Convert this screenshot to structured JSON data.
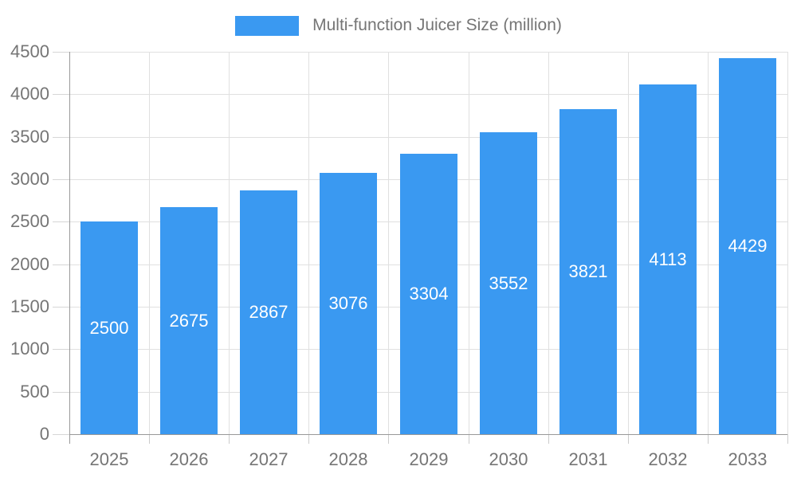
{
  "legend": {
    "label": "Multi-function Juicer Size (million)"
  },
  "chart_data": {
    "type": "bar",
    "title": "Multi-function Juicer Size (million)",
    "series_name": "Multi-function Juicer Size (million)",
    "categories": [
      "2025",
      "2026",
      "2027",
      "2028",
      "2029",
      "2030",
      "2031",
      "2032",
      "2033"
    ],
    "values": [
      2500,
      2675,
      2867,
      3076,
      3304,
      3552,
      3821,
      4113,
      4429
    ],
    "xlabel": "",
    "ylabel": "",
    "ylim": [
      0,
      4500
    ],
    "ytick_step": 500,
    "ytick_labels": [
      "0",
      "500",
      "1000",
      "1500",
      "2000",
      "2500",
      "3000",
      "3500",
      "4000",
      "4500"
    ],
    "grid": true,
    "legend_position": "top",
    "bar_color": "#3A99F1",
    "value_label_color": "#ffffff",
    "axis_text_color": "#757575",
    "gridline_color": "#e0e0e0",
    "axis_line_color": "#999999"
  }
}
